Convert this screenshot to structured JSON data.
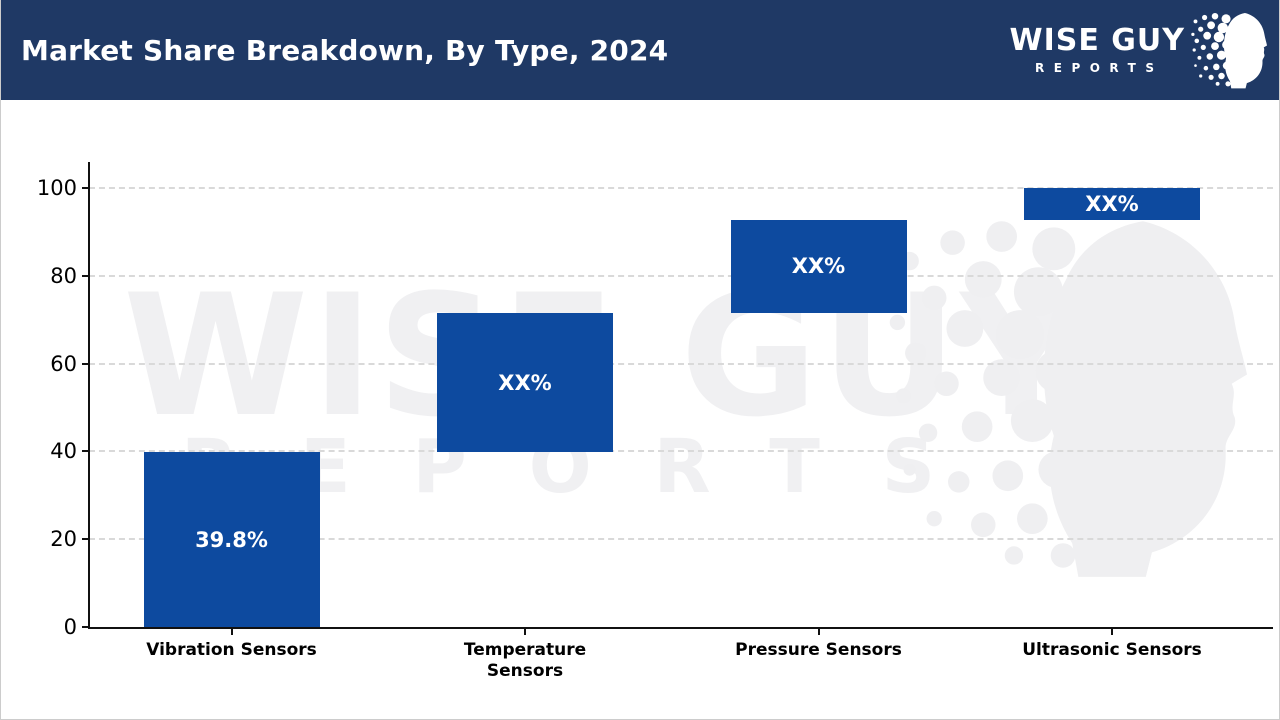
{
  "header": {
    "title": "Market Share Breakdown, By Type, 2024",
    "bg_color": "#1f3965",
    "logo": {
      "line1": "WISE GUY",
      "line2": "REPORTS",
      "face_icon": "dotted-face-profile"
    }
  },
  "watermark": {
    "line1": "WISE GUY",
    "line2": "REPORTS",
    "face_icon": "dotted-face-profile",
    "color": "#f0f0f2"
  },
  "chart_data": {
    "type": "bar",
    "subtype": "waterfall",
    "title": "Market Share Breakdown, By Type, 2024",
    "categories": [
      "Vibration Sensors",
      "Temperature Sensors",
      "Pressure Sensors",
      "Ultrasonic Sensors"
    ],
    "xtick_labels": [
      "Vibration Sensors",
      "Temperature\nSensors",
      "Pressure Sensors",
      "Ultrasonic Sensors"
    ],
    "segments": [
      {
        "category": "Vibration Sensors",
        "label": "39.8%",
        "start": 0,
        "end": 39.8,
        "value": 39.8
      },
      {
        "category": "Temperature Sensors",
        "label": "XX%",
        "start": 39.8,
        "end": 71.5,
        "value": 31.7
      },
      {
        "category": "Pressure Sensors",
        "label": "XX%",
        "start": 71.5,
        "end": 92.8,
        "value": 21.3
      },
      {
        "category": "Ultrasonic Sensors",
        "label": "XX%",
        "start": 92.8,
        "end": 100,
        "value": 7.2
      }
    ],
    "ylim": [
      0,
      100
    ],
    "yticks": [
      0,
      20,
      40,
      60,
      80,
      100
    ],
    "grid": "horizontal-dashed",
    "legend": "none",
    "bar_color": "#0d4a9f",
    "grid_color": "#d9d9d9",
    "axis_color": "#111111"
  }
}
